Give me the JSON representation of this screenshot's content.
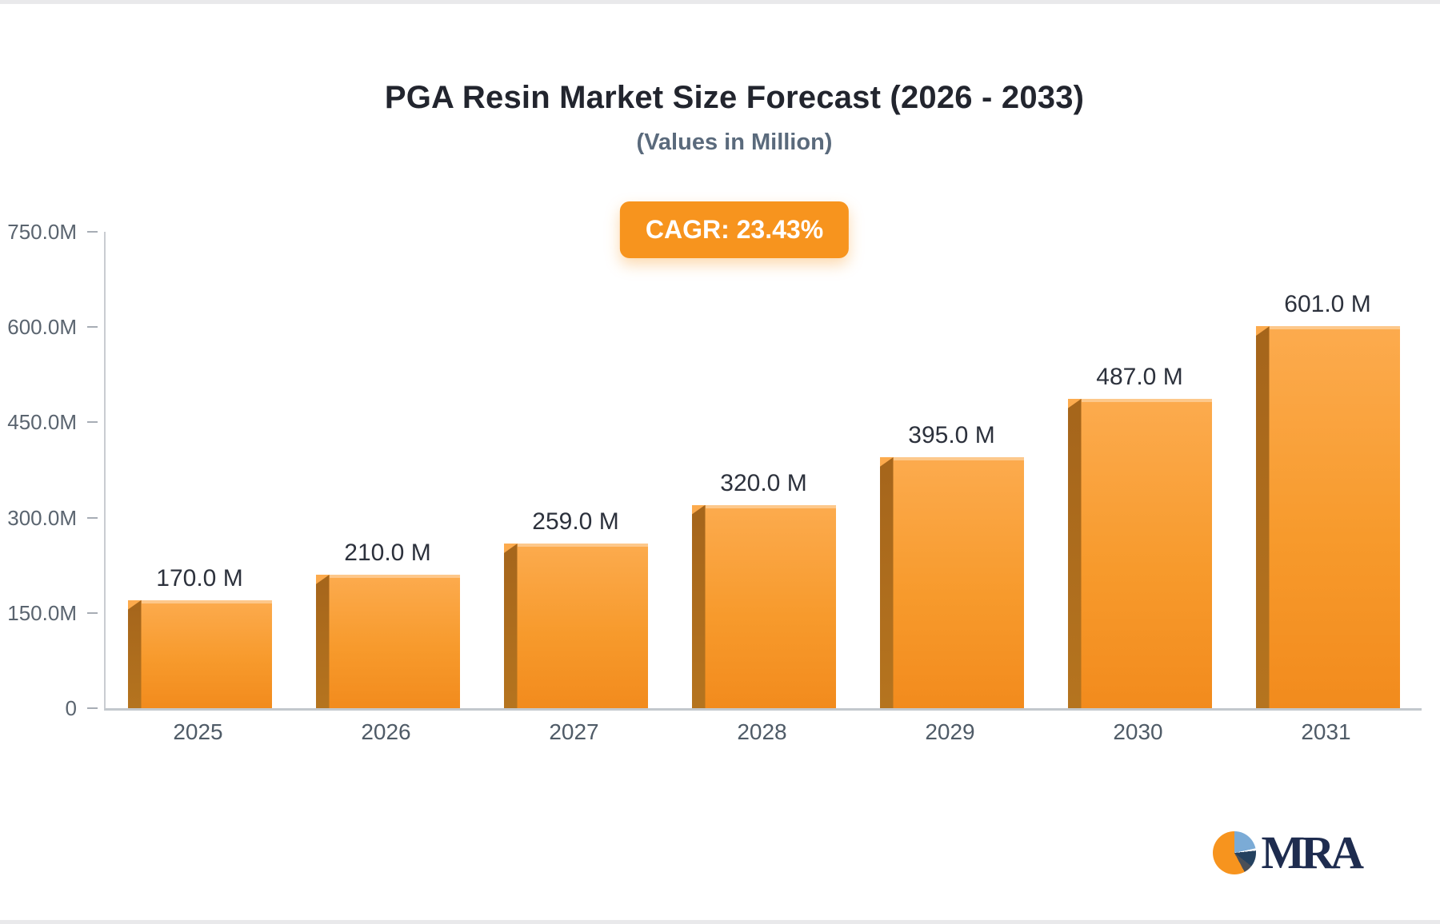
{
  "title": "PGA Resin Market Size Forecast (2026 - 2033)",
  "subtitle": "(Values in Million)",
  "badge": {
    "label": "CAGR: 23.43%",
    "color": "#f7941e"
  },
  "logo": {
    "text": "MRA"
  },
  "chart_data": {
    "type": "bar",
    "title": "PGA Resin Market Size Forecast (2026 - 2033)",
    "subtitle": "(Values in Million)",
    "categories": [
      "2025",
      "2026",
      "2027",
      "2028",
      "2029",
      "2030",
      "2031"
    ],
    "values": [
      170.0,
      210.0,
      259.0,
      320.0,
      395.0,
      487.0,
      601.0
    ],
    "value_labels": [
      "170.0 M",
      "210.0 M",
      "259.0 M",
      "320.0 M",
      "395.0 M",
      "487.0 M",
      "601.0 M"
    ],
    "y_ticks": [
      {
        "label": "750.0M",
        "value": 750
      },
      {
        "label": "600.0M",
        "value": 600
      },
      {
        "label": "450.0M",
        "value": 450
      },
      {
        "label": "300.0M",
        "value": 300
      },
      {
        "label": "150.0M",
        "value": 150
      },
      {
        "label": "0",
        "value": 0
      }
    ],
    "ylim": [
      0,
      750
    ],
    "xlabel": "",
    "ylabel": "",
    "grid": false,
    "legend": false,
    "bar_color_top": "#fcab4e",
    "bar_color_bottom": "#f28b1d",
    "bar_side_color": "#b5741f",
    "annotation": "CAGR: 23.43%"
  }
}
